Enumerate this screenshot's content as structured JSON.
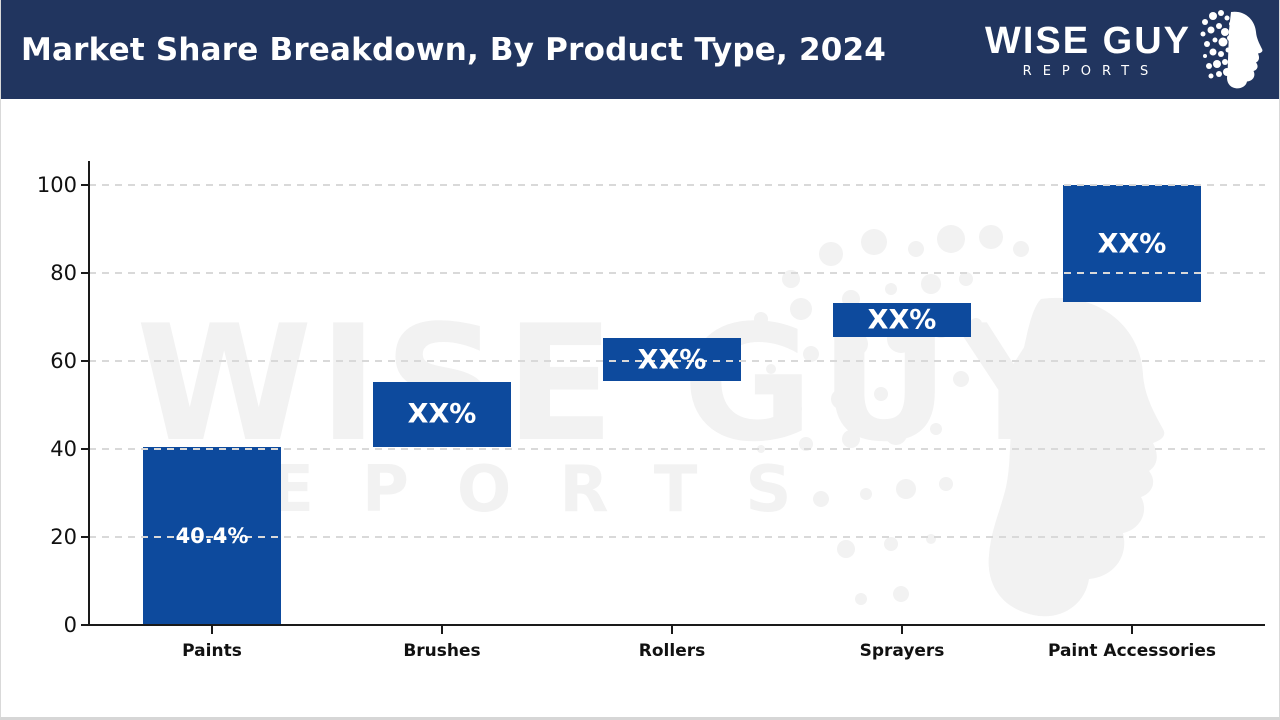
{
  "header": {
    "title": "Market Share Breakdown, By Product Type, 2024",
    "logo": {
      "wise_guy": "WISE GUY",
      "reports": "REPORTS"
    }
  },
  "watermark": {
    "wise_guy": "WISE GUY",
    "reports": "REPORTS"
  },
  "chart_data": {
    "type": "bar",
    "subtype": "waterfall",
    "title": "Market Share Breakdown, By Product Type, 2024",
    "categories": [
      "Paints",
      "Brushes",
      "Rollers",
      "Sprayers",
      "Paint Accessories"
    ],
    "bars": [
      {
        "category": "Paints",
        "start": 0,
        "end": 40.4,
        "label": "40.4%"
      },
      {
        "category": "Brushes",
        "start": 40.4,
        "end": 55.3,
        "label": "XX%"
      },
      {
        "category": "Rollers",
        "start": 55.4,
        "end": 65.2,
        "label": "XX%"
      },
      {
        "category": "Sprayers",
        "start": 65.4,
        "end": 73.2,
        "label": "XX%"
      },
      {
        "category": "Paint Accessories",
        "start": 73.4,
        "end": 100,
        "label": "XX%"
      }
    ],
    "yticks": [
      0,
      20,
      40,
      60,
      80,
      100
    ],
    "ylim": [
      0,
      105
    ],
    "xlabel": "",
    "ylabel": "",
    "grid": {
      "axis": "y",
      "style": "dashed",
      "color": "#d9d9d9"
    },
    "legend": "none",
    "bar_color": "#0d4a9d",
    "bar_label_color": "#ffffff",
    "axis_color": "#1a1a1a",
    "header_color": "#21355f",
    "watermark_color": "#f2f2f2"
  }
}
